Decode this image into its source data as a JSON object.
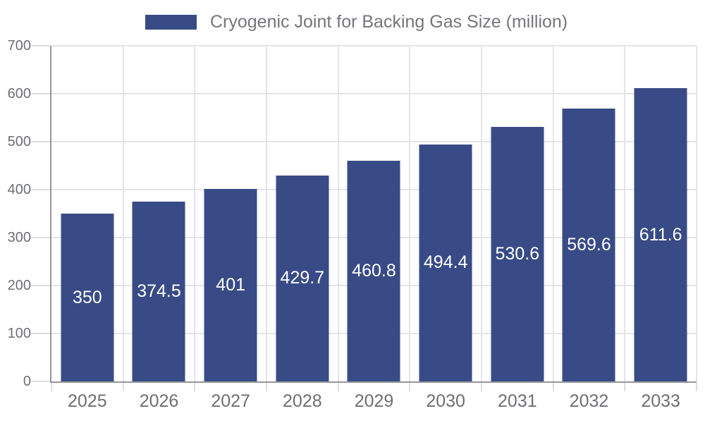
{
  "legend": {
    "label": "Cryogenic Joint for Backing Gas Size (million)"
  },
  "chart_data": {
    "type": "bar",
    "categories": [
      "2025",
      "2026",
      "2027",
      "2028",
      "2029",
      "2030",
      "2031",
      "2032",
      "2033"
    ],
    "series": [
      {
        "name": "Cryogenic Joint for Backing Gas Size (million)",
        "values": [
          350,
          374.5,
          401,
          429.7,
          460.8,
          494.4,
          530.6,
          569.6,
          611.6
        ],
        "labels": [
          "350",
          "374.5",
          "401",
          "429.7",
          "460.8",
          "494.4",
          "530.6",
          "569.6",
          "611.6"
        ],
        "color": "#394B86"
      }
    ],
    "xlabel": "",
    "ylabel": "",
    "ylim": [
      0,
      700
    ],
    "yticks": [
      0,
      100,
      200,
      300,
      400,
      500,
      600,
      700
    ],
    "grid": true,
    "legend_position": "top-center",
    "value_label_position": "inside-center",
    "value_label_color": "#ffffff"
  },
  "colors": {
    "bar": "#394B86",
    "axis_line": "#96969b",
    "gridline": "#e4e4e8",
    "tick": "#dcdce0",
    "axis_text": "#6e6f73",
    "legend_text": "#75767a",
    "background": "#ffffff"
  }
}
